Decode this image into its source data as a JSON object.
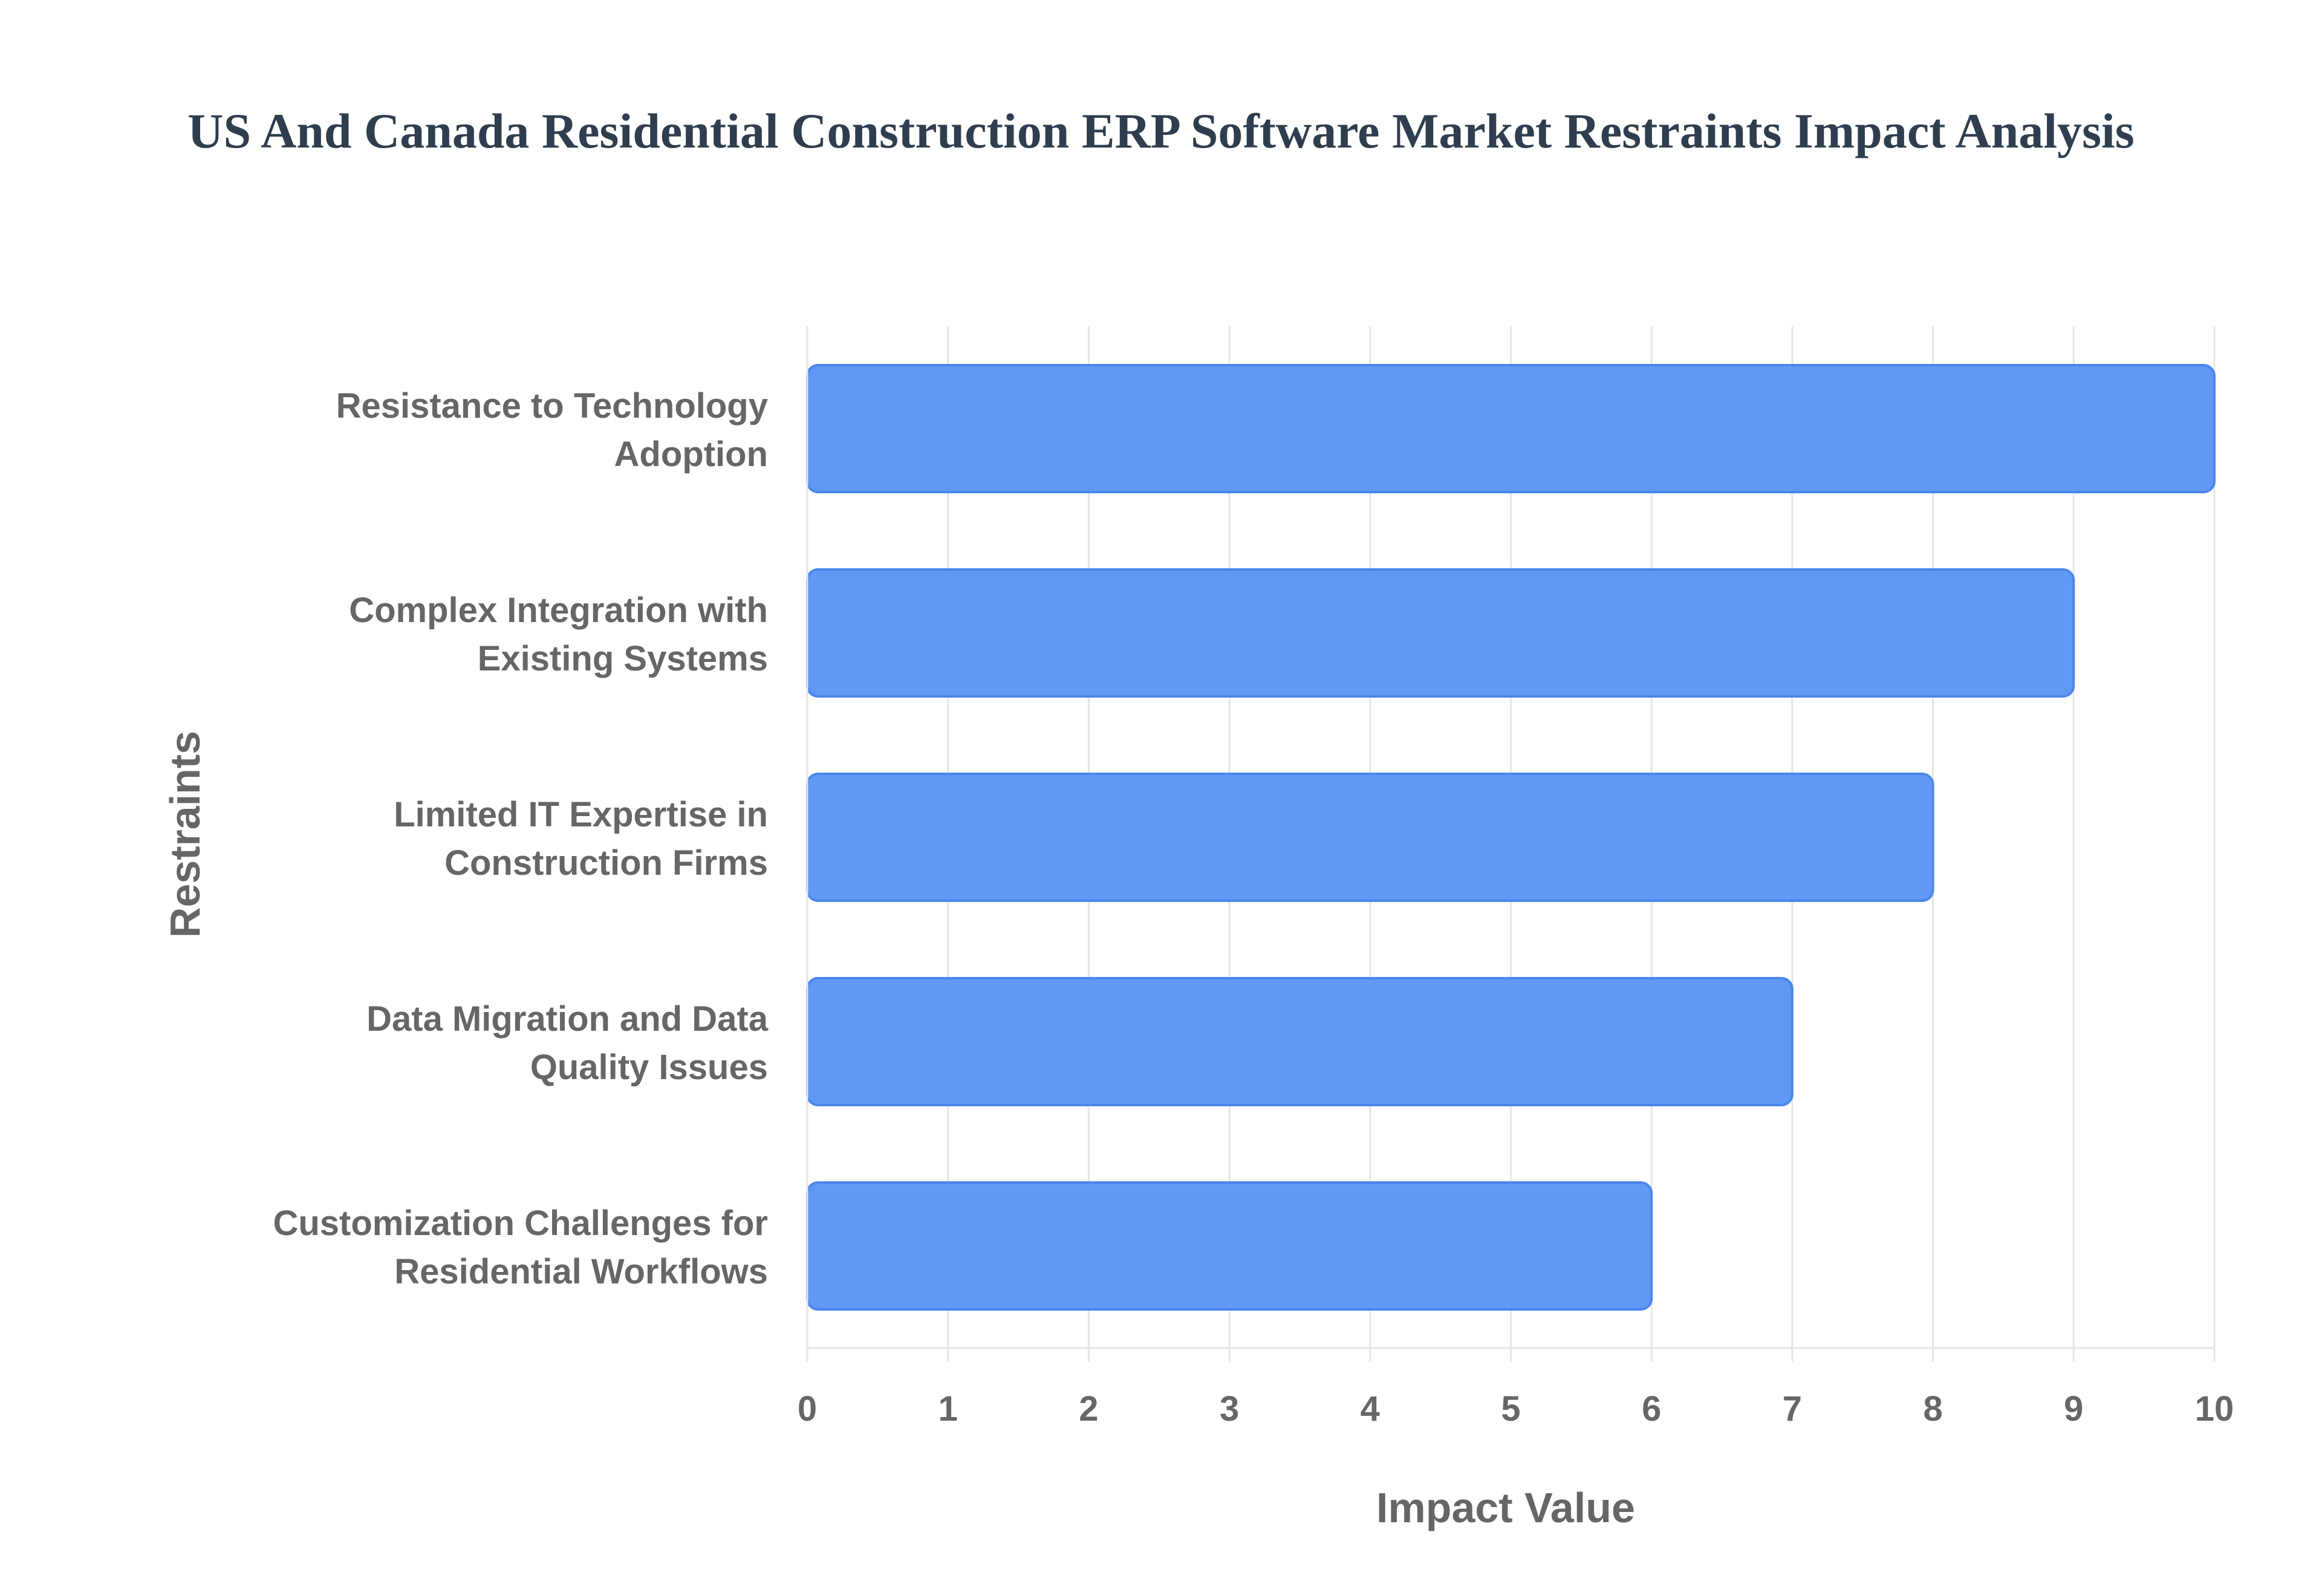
{
  "title": "US And Canada Residential Construction ERP Software Market Restraints Impact Analysis",
  "colors": {
    "bar_fill": "#6198f5",
    "bar_stroke": "#4a86ec",
    "grid": "#e6e6e6",
    "text": "#666666",
    "title": "#2f3e4e"
  },
  "chart_data": {
    "type": "bar",
    "orientation": "horizontal",
    "title": "US And Canada Residential Construction ERP Software Market Restraints Impact Analysis",
    "xlabel": "Impact Value",
    "ylabel": "Restraints",
    "categories": [
      [
        "Resistance to Technology",
        "Adoption"
      ],
      [
        "Complex Integration with",
        "Existing Systems"
      ],
      [
        "Limited IT Expertise in",
        "Construction Firms"
      ],
      [
        "Data Migration and Data",
        "Quality Issues"
      ],
      [
        "Customization Challenges for",
        "Residential Workflows"
      ]
    ],
    "values": [
      10,
      9,
      8,
      7,
      6
    ],
    "xlim": [
      0,
      10
    ],
    "xticks": [
      "0",
      "1",
      "2",
      "3",
      "4",
      "5",
      "6",
      "7",
      "8",
      "9",
      "10"
    ],
    "grid": true,
    "legend": "none"
  }
}
